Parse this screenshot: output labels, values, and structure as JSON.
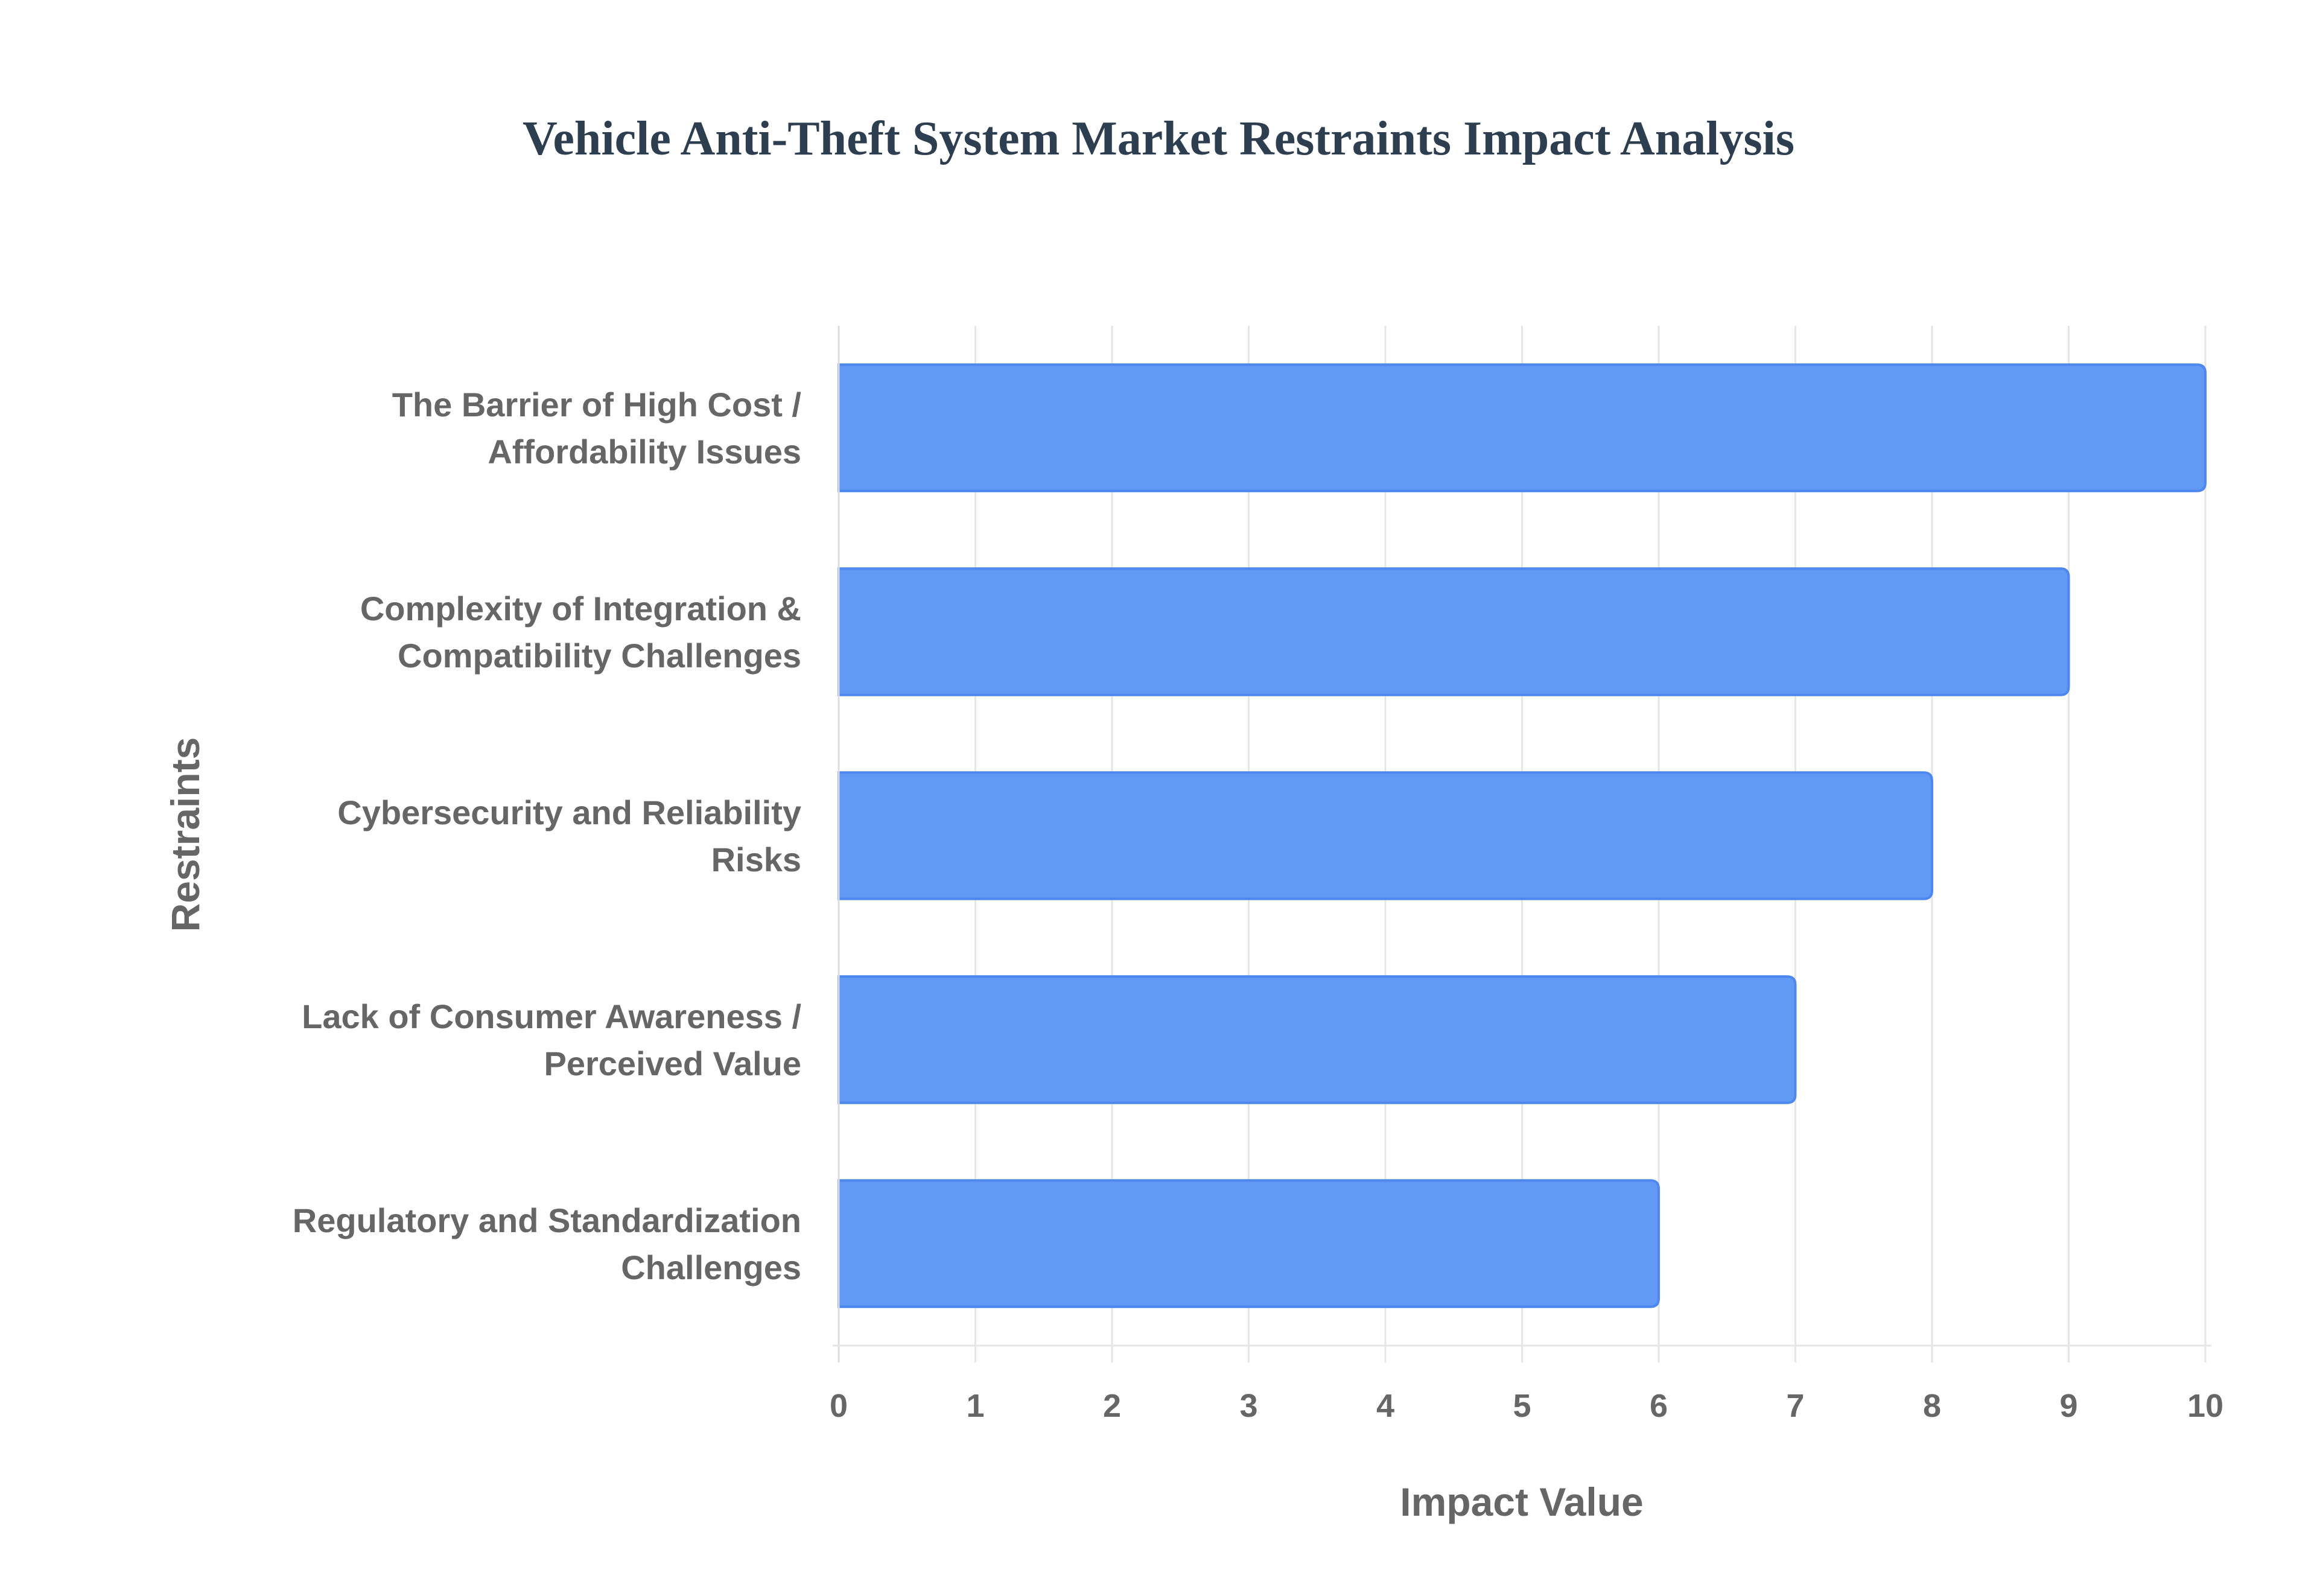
{
  "chart_data": {
    "type": "bar",
    "orientation": "horizontal",
    "title": "Vehicle Anti-Theft System Market Restraints Impact Analysis",
    "xlabel": "Impact Value",
    "ylabel": "Restraints",
    "xlim": [
      0,
      10
    ],
    "x_ticks": [
      "0",
      "1",
      "2",
      "3",
      "4",
      "5",
      "6",
      "7",
      "8",
      "9",
      "10"
    ],
    "grid": true,
    "legend": "none",
    "bar_color": "#6199f4",
    "bar_border_color": "#4e88ee",
    "categories": [
      [
        "The Barrier of High Cost /",
        "Affordability Issues"
      ],
      [
        "Complexity of Integration &",
        "Compatibility Challenges"
      ],
      [
        "Cybersecurity and Reliability",
        "Risks"
      ],
      [
        "Lack of Consumer Awareness /",
        "Perceived Value"
      ],
      [
        "Regulatory and Standardization",
        "Challenges"
      ]
    ],
    "values": [
      10,
      9,
      8,
      7,
      6
    ]
  }
}
